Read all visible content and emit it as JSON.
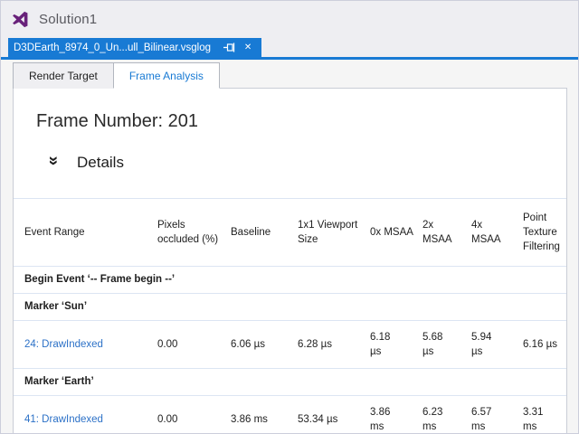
{
  "window": {
    "title": "Solution1"
  },
  "document_tab": {
    "label": "D3DEarth_8974_0_Un...ull_Bilinear.vsglog",
    "close_glyph": "✕"
  },
  "subtabs": [
    {
      "label": "Render Target",
      "active": false
    },
    {
      "label": "Frame Analysis",
      "active": true
    }
  ],
  "frame": {
    "heading": "Frame Number: 201",
    "details_label": "Details",
    "details_chevron_glyph": "»"
  },
  "table": {
    "columns": [
      "Event Range",
      "Pixels occluded (%)",
      "Baseline",
      "1x1 Viewport Size",
      "0x MSAA",
      "2x MSAA",
      "4x MSAA",
      "Point Texture Filtering"
    ],
    "rows": [
      {
        "type": "group",
        "label": "Begin Event ‘-- Frame begin --’"
      },
      {
        "type": "group",
        "label": "Marker ‘Sun’"
      },
      {
        "type": "data",
        "event": "24: DrawIndexed",
        "values": [
          "0.00",
          "6.06 µs",
          "6.28 µs",
          "6.18 µs",
          "5.68 µs",
          "5.94 µs",
          "6.16 µs"
        ]
      },
      {
        "type": "group",
        "label": "Marker ‘Earth’"
      },
      {
        "type": "data",
        "event": "41: DrawIndexed",
        "values": [
          "0.00",
          "3.86 ms",
          "53.34 µs",
          "3.86 ms",
          "6.23 ms",
          "6.57 ms",
          "3.31 ms"
        ]
      }
    ]
  },
  "colors": {
    "accent_blue": "#187ad4",
    "link_blue": "#2c71c7",
    "logo_purple": "#68217a",
    "titlebar_bg": "#eeeef2",
    "row_separator": "#dce5f3"
  }
}
